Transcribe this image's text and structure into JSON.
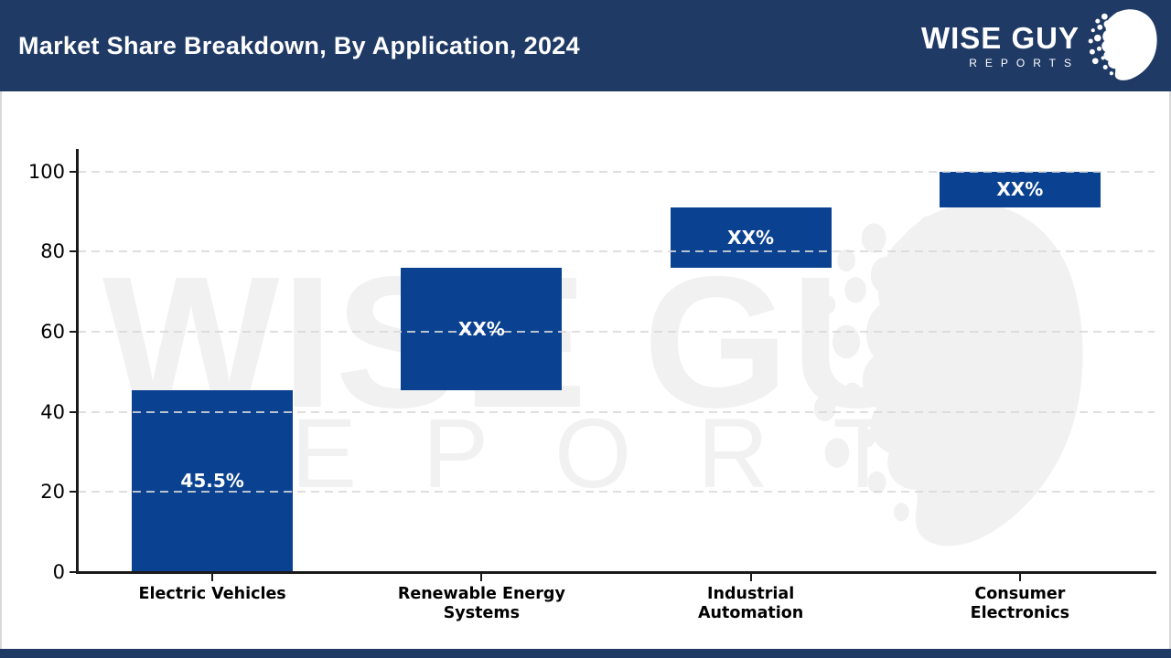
{
  "header": {
    "title": "Market Share Breakdown, By Application, 2024",
    "bg_color": "#203a66",
    "logo": {
      "line1": "WISE GUY",
      "line2": "REPORTS"
    }
  },
  "footer": {
    "bg_color": "#203a66"
  },
  "watermark": {
    "line1": "WISE GUY",
    "line2": "REPORTS"
  },
  "chart_data": {
    "type": "bar",
    "subtype": "waterfall-stacked-percentage",
    "title": "Market Share Breakdown, By Application, 2024",
    "categories": [
      "Electric Vehicles",
      "Renewable Energy\nSystems",
      "Industrial\nAutomation",
      "Consumer\nElectronics"
    ],
    "bar_labels": [
      "45.5%",
      "XX%",
      "XX%",
      "XX%"
    ],
    "segments": [
      {
        "start": 0,
        "end": 45.5
      },
      {
        "start": 45.5,
        "end": 76
      },
      {
        "start": 76,
        "end": 91
      },
      {
        "start": 91,
        "end": 100
      }
    ],
    "values_visible": [
      45.5,
      null,
      null,
      null
    ],
    "y_ticks": [
      0,
      20,
      40,
      60,
      80,
      100
    ],
    "ylim": [
      0,
      105
    ],
    "xlabel": "",
    "ylabel": "",
    "bar_color": "#0a4191",
    "grid": "horizontal-dashed",
    "gridline_color": "#d9d9d9",
    "legend": "none"
  }
}
